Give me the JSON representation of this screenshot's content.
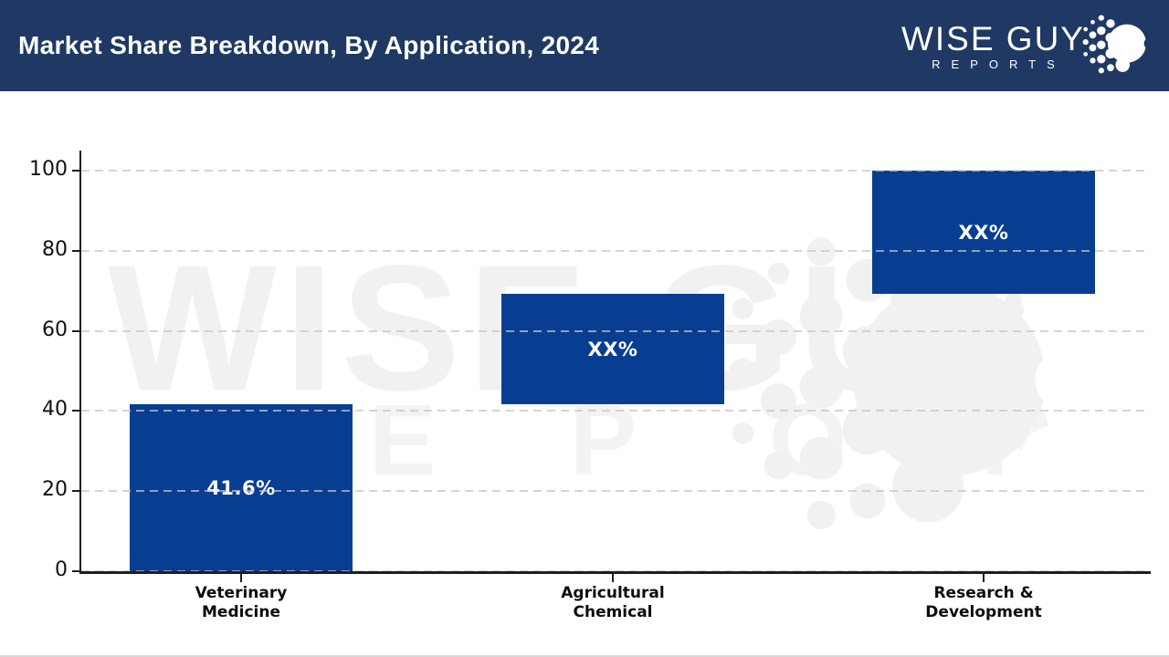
{
  "header": {
    "title": "Market Share Breakdown, By Application, 2024",
    "bg_color": "#1f3864",
    "logo": {
      "line1": "WISE GUY",
      "line2": "REPORTS",
      "icon": "dotted-head-icon"
    }
  },
  "watermark": {
    "line1": "WISE GUY",
    "line2": "R E P O R T S",
    "icon": "dotted-head-icon"
  },
  "chart_data": {
    "type": "bar",
    "subtype": "waterfall",
    "title": "Market Share Breakdown, By Application, 2024",
    "categories": [
      {
        "line1": "Veterinary",
        "line2": "Medicine"
      },
      {
        "line1": "Agricultural",
        "line2": "Chemical"
      },
      {
        "line1": "Research &",
        "line2": "Development"
      }
    ],
    "segments": [
      {
        "category": "Veterinary Medicine",
        "start": 0,
        "end": 41.6,
        "label": "41.6%"
      },
      {
        "category": "Agricultural Chemical",
        "start": 41.6,
        "end": 69.2,
        "label": "XX%"
      },
      {
        "category": "Research & Development",
        "start": 69.2,
        "end": 100,
        "label": "XX%"
      }
    ],
    "y_ticks": [
      0,
      20,
      40,
      60,
      80,
      100
    ],
    "ylim": [
      0,
      100
    ],
    "xlabel": "",
    "ylabel": "",
    "bar_color": "#083e92",
    "grid": "horizontal-dashed",
    "legend": "none"
  }
}
